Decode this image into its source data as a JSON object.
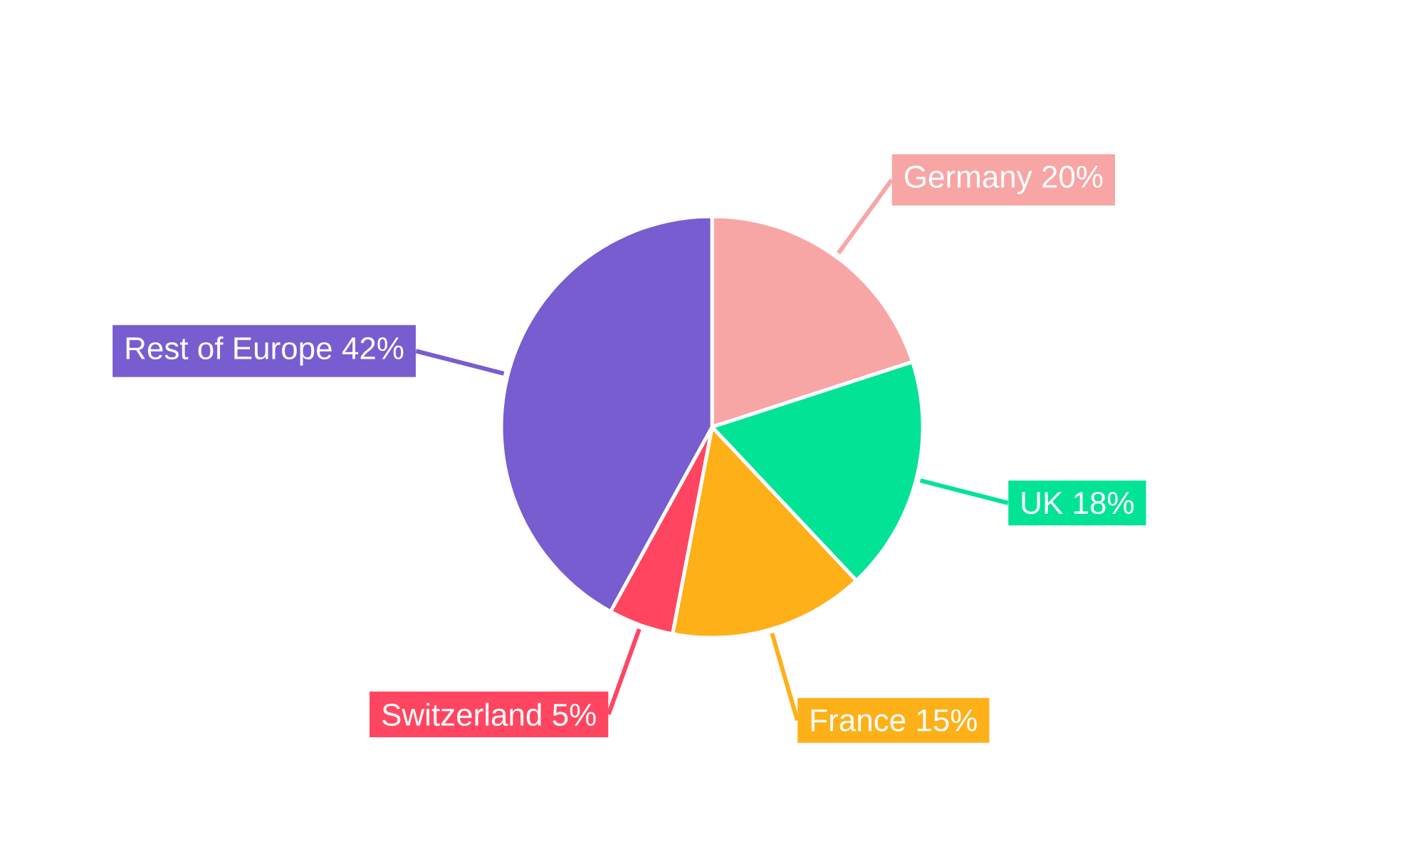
{
  "chart_data": {
    "type": "pie",
    "categories": [
      "Germany",
      "UK",
      "France",
      "Switzerland",
      "Rest of Europe"
    ],
    "values": [
      20,
      18,
      15,
      5,
      42
    ],
    "value_labels": [
      "20%",
      "18%",
      "15%",
      "5%",
      "42%"
    ],
    "colors": [
      "#f8a5a6",
      "#03e396",
      "#feb019",
      "#ff4560",
      "#775dd0"
    ]
  }
}
